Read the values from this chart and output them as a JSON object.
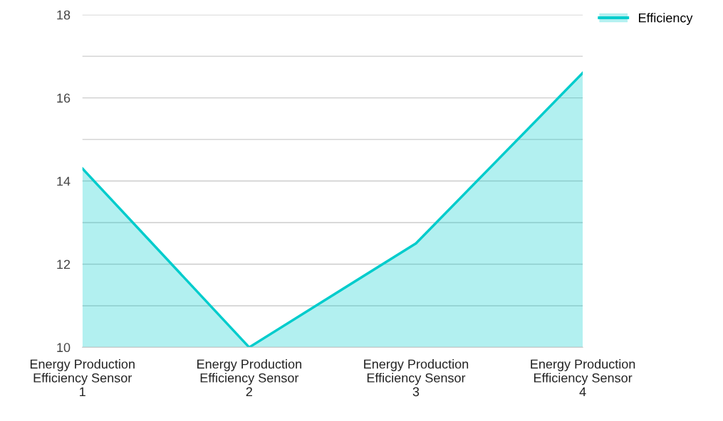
{
  "chart_data": {
    "type": "area",
    "categories": [
      "Energy Production\nEfficiency Sensor\n1",
      "Energy Production\nEfficiency Sensor\n2",
      "Energy Production\nEfficiency Sensor\n3",
      "Energy Production\nEfficiency Sensor\n4"
    ],
    "series": [
      {
        "name": "Efficiency",
        "color": "#00cccc",
        "values": [
          14.3,
          10,
          12.5,
          16.6
        ]
      }
    ],
    "ylim": [
      10,
      18
    ],
    "yticks": [
      10,
      {
        "value": 11,
        "label": null
      },
      12,
      {
        "value": 13,
        "label": null
      },
      14,
      {
        "value": 15,
        "label": null
      },
      16,
      {
        "value": 17,
        "label": null
      },
      18
    ],
    "grid": "y",
    "legend": "top right"
  }
}
